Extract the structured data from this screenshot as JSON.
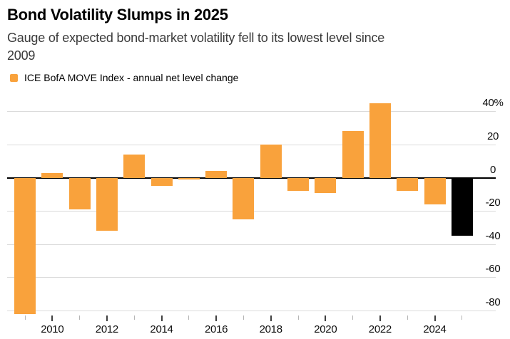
{
  "header": {
    "title": "Bond Volatility Slumps in 2025",
    "subtitle_lines": [
      "Gauge of expected bond-market volatility fell to its lowest level since",
      "2009"
    ]
  },
  "legend": {
    "label": "ICE BofA MOVE Index - annual net level change",
    "swatch_color": "#F9A23C"
  },
  "chart_data": {
    "type": "bar",
    "title": "Bond Volatility Slumps in 2025",
    "subtitle": "Gauge of expected bond-market volatility fell to its lowest level since 2009",
    "legend_entries": [
      "ICE BofA MOVE Index - annual net level change"
    ],
    "legend_position": "top-left",
    "categories": [
      "2009",
      "2010",
      "2011",
      "2012",
      "2013",
      "2014",
      "2015",
      "2016",
      "2017",
      "2018",
      "2019",
      "2020",
      "2021",
      "2022",
      "2023",
      "2024",
      "2025"
    ],
    "values": [
      -82,
      3,
      -19,
      -32,
      14,
      -5,
      -1,
      4,
      -25,
      20,
      -8,
      -9,
      28,
      45,
      -8,
      -16,
      -35
    ],
    "unit": "%",
    "xtick_labels": [
      "2010",
      "2012",
      "2014",
      "2016",
      "2018",
      "2020",
      "2022",
      "2024"
    ],
    "ytick_labels": [
      "40%",
      "20",
      "0",
      "-20",
      "-40",
      "-60",
      "-80"
    ],
    "ytick_values": [
      40,
      20,
      0,
      -20,
      -40,
      -60,
      -80
    ],
    "ylim": [
      -83,
      50
    ],
    "grid": true,
    "yaxis_side": "right",
    "highlight_index": 16,
    "colors": {
      "bar": "#F9A23C",
      "highlight": "#000000",
      "grid": "#DBDBDB",
      "zero_line": "#000000"
    }
  }
}
